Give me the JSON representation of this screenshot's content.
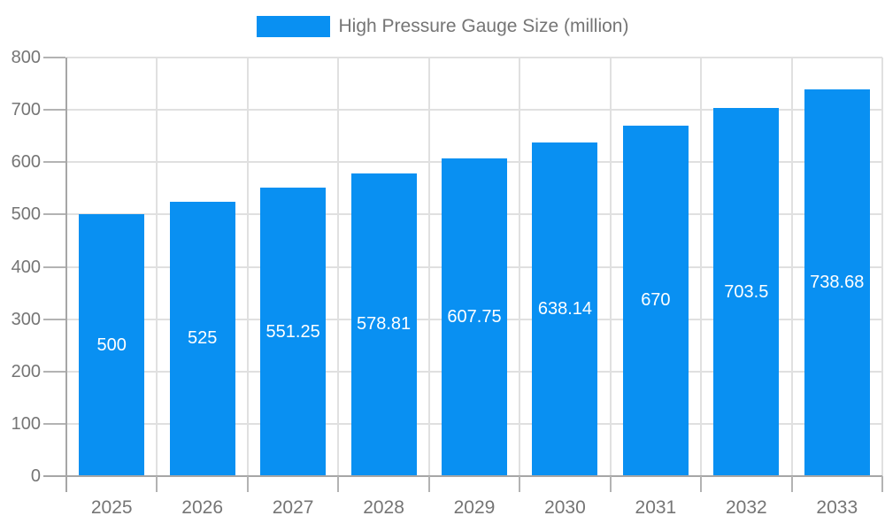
{
  "legend": {
    "label": "High Pressure Gauge Size (million)",
    "swatch_color": "#0990F2"
  },
  "chart_data": {
    "type": "bar",
    "title": "High Pressure Gauge Size (million)",
    "categories": [
      "2025",
      "2026",
      "2027",
      "2028",
      "2029",
      "2030",
      "2031",
      "2032",
      "2033"
    ],
    "values": [
      500,
      525,
      551.25,
      578.81,
      607.75,
      638.14,
      670,
      703.5,
      738.68
    ],
    "value_labels": [
      "500",
      "525",
      "551.25",
      "578.81",
      "607.75",
      "638.14",
      "670",
      "703.5",
      "738.68"
    ],
    "xlabel": "",
    "ylabel": "",
    "ylim": [
      0,
      800
    ],
    "ytick_step": 100,
    "ytick_labels": [
      "0",
      "100",
      "200",
      "300",
      "400",
      "500",
      "600",
      "700",
      "800"
    ],
    "grid": true,
    "legend_position": "top-center",
    "colors": {
      "bar": "#0990F2",
      "bar_label": "#ffffff",
      "axis": "#a6a6a6",
      "gridline": "#e0e0e0",
      "tick": "#b3b3b3",
      "text": "#757575",
      "background": "#ffffff"
    }
  }
}
